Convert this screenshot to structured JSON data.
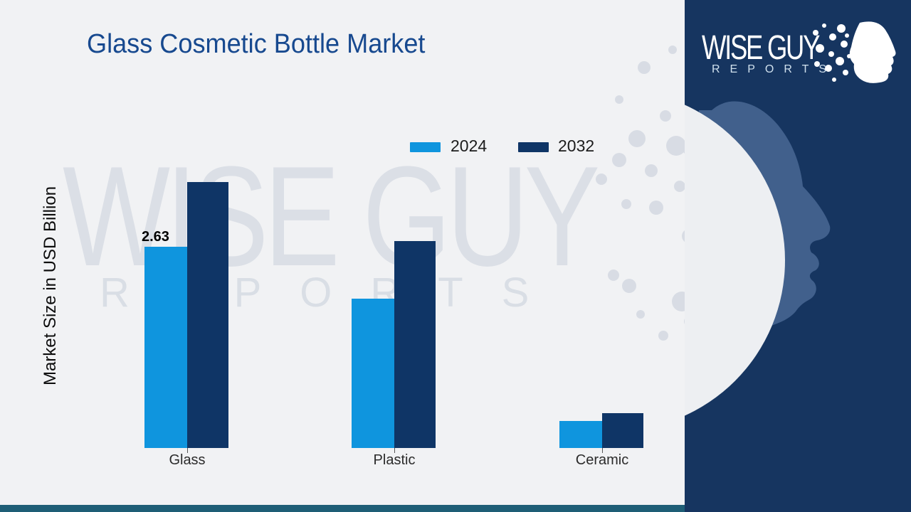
{
  "page": {
    "title": "Glass Cosmetic Bottle Market"
  },
  "branding": {
    "logo_line1": "WISE GUY",
    "logo_line2": "REPORTS",
    "watermark_line1": "WISE GUY",
    "watermark_line2": "REPORTS",
    "colors": {
      "title_blue": "#17498f",
      "panel_navy": "#163560",
      "strip_teal": "#1e5e76",
      "face_slate": "#41608c",
      "circle_light": "#edeff2"
    }
  },
  "chart_data": {
    "type": "bar",
    "title": "Glass Cosmetic Bottle Market",
    "xlabel": "",
    "ylabel": "Market Size in USD Billion",
    "categories": [
      "Glass",
      "Plastic",
      "Ceramic"
    ],
    "series": [
      {
        "name": "2024",
        "color": "#0f95de",
        "values": [
          2.63,
          1.95,
          0.35
        ]
      },
      {
        "name": "2032",
        "color": "#0f3566",
        "values": [
          3.48,
          2.7,
          0.46
        ]
      }
    ],
    "data_labels": {
      "glass_2024": "2.63"
    },
    "legend_position": "top",
    "grid": false,
    "ylim": [
      0,
      4
    ]
  }
}
